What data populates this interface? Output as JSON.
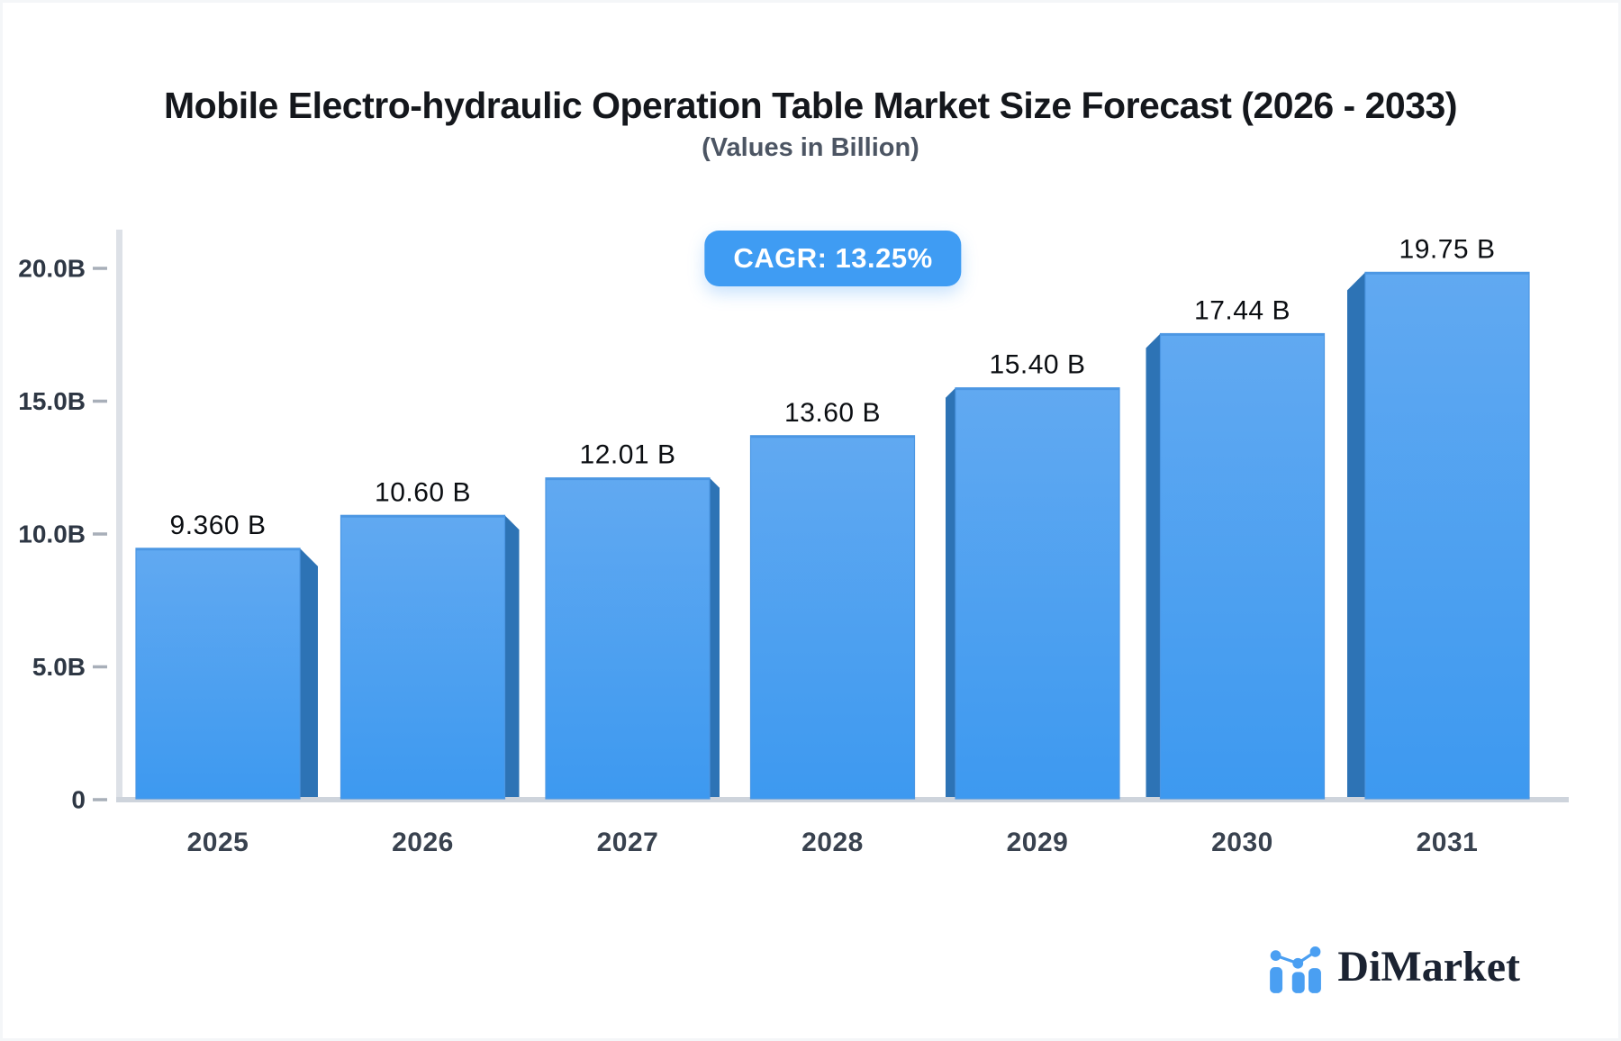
{
  "header": {
    "title": "Mobile Electro-hydraulic Operation Table Market Size Forecast (2026 - 2033)",
    "subtitle": "(Values in Billion)",
    "cagr_label": "CAGR: 13.25%"
  },
  "badge": {
    "bg": "#3f9cf3",
    "text_color": "#ffffff"
  },
  "chart_data": {
    "type": "bar",
    "title": "Mobile Electro-hydraulic Operation Table Market Size Forecast (2026 - 2033)",
    "subtitle": "(Values in Billion)",
    "categories": [
      "2025",
      "2026",
      "2027",
      "2028",
      "2029",
      "2030",
      "2031"
    ],
    "values": [
      9.36,
      10.6,
      12.01,
      13.6,
      15.4,
      17.44,
      19.75
    ],
    "value_labels": [
      "9.360 B",
      "10.60 B",
      "12.01 B",
      "13.60 B",
      "15.40 B",
      "17.44 B",
      "19.75 B"
    ],
    "xlabel": "",
    "ylabel": "",
    "ylim": [
      0,
      20
    ],
    "y_ticks": [
      {
        "value": 0,
        "label": "0"
      },
      {
        "value": 5,
        "label": "5.0B"
      },
      {
        "value": 10,
        "label": "10.0B"
      },
      {
        "value": 15,
        "label": "15.0B"
      },
      {
        "value": 20,
        "label": "20.0B"
      }
    ],
    "grid": false,
    "legend": null,
    "colors": {
      "bar_top": "#61a9f1",
      "bar_bottom": "#3d99f0",
      "bar_side": "#2d73b5",
      "bar_edge": "#4c97e3",
      "value_label": "#0b0e12",
      "category_label": "#39424f",
      "tick_label": "#2e3744",
      "axis_y_line": "#dde1e7",
      "axis_x_line": "#ced4dc",
      "tick_dash": "#a8afb9"
    }
  },
  "branding": {
    "logo_text": "DiMarket",
    "logo_icon": "bar-chart-with-trendline-icon",
    "logo_text_color": "#1b2332",
    "logo_icon_color": "#4a9ff2"
  }
}
